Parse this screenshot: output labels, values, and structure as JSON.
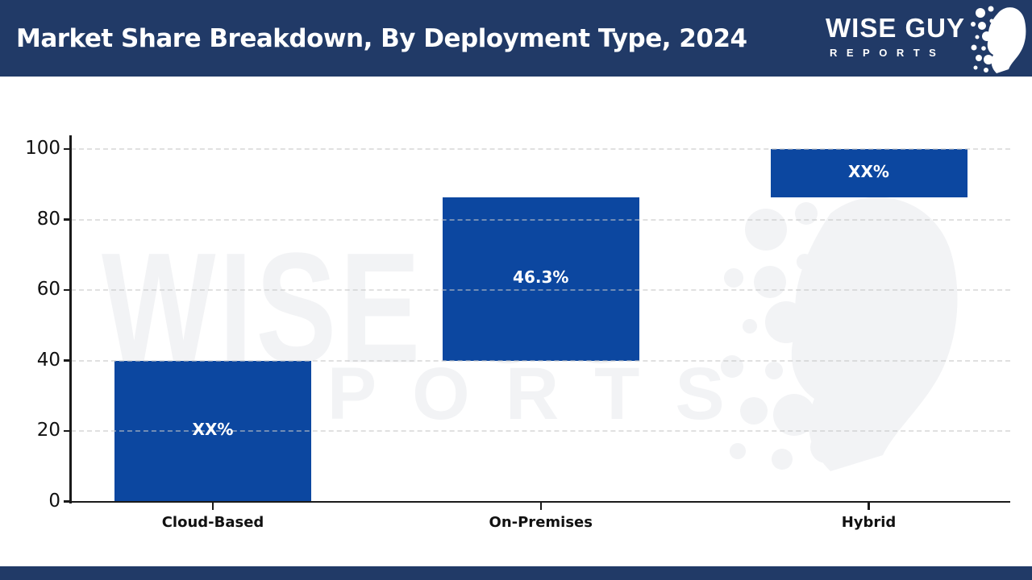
{
  "header": {
    "title": "Market Share Breakdown, By Deployment Type, 2024",
    "background_color": "#213a67",
    "logo": {
      "line1": "WISE GUY",
      "line2": "REPORTS"
    }
  },
  "watermark": {
    "line1": "WISE GU",
    "line2": "REPORTS"
  },
  "chart_data": {
    "type": "waterfall",
    "title": "Market Share Breakdown, By Deployment Type, 2024",
    "categories": [
      "Cloud-Based",
      "On-Premises",
      "Hybrid"
    ],
    "segments": [
      {
        "category": "Cloud-Based",
        "start": 0,
        "end": 40,
        "label": "XX%"
      },
      {
        "category": "On-Premises",
        "start": 40,
        "end": 86.3,
        "label": "46.3%"
      },
      {
        "category": "Hybrid",
        "start": 86.3,
        "end": 100,
        "label": "XX%"
      }
    ],
    "yticks": [
      0,
      20,
      40,
      60,
      80,
      100
    ],
    "ylim": [
      0,
      105
    ],
    "xlabel": "",
    "ylabel": "",
    "grid": "horizontal-dashed-over-bars",
    "legend": "none",
    "bar_color": "#0c47a0",
    "bar_label_color": "#ffffff",
    "axis_color": "#1a1a1a",
    "gridline_color": "#c6c6c6"
  }
}
